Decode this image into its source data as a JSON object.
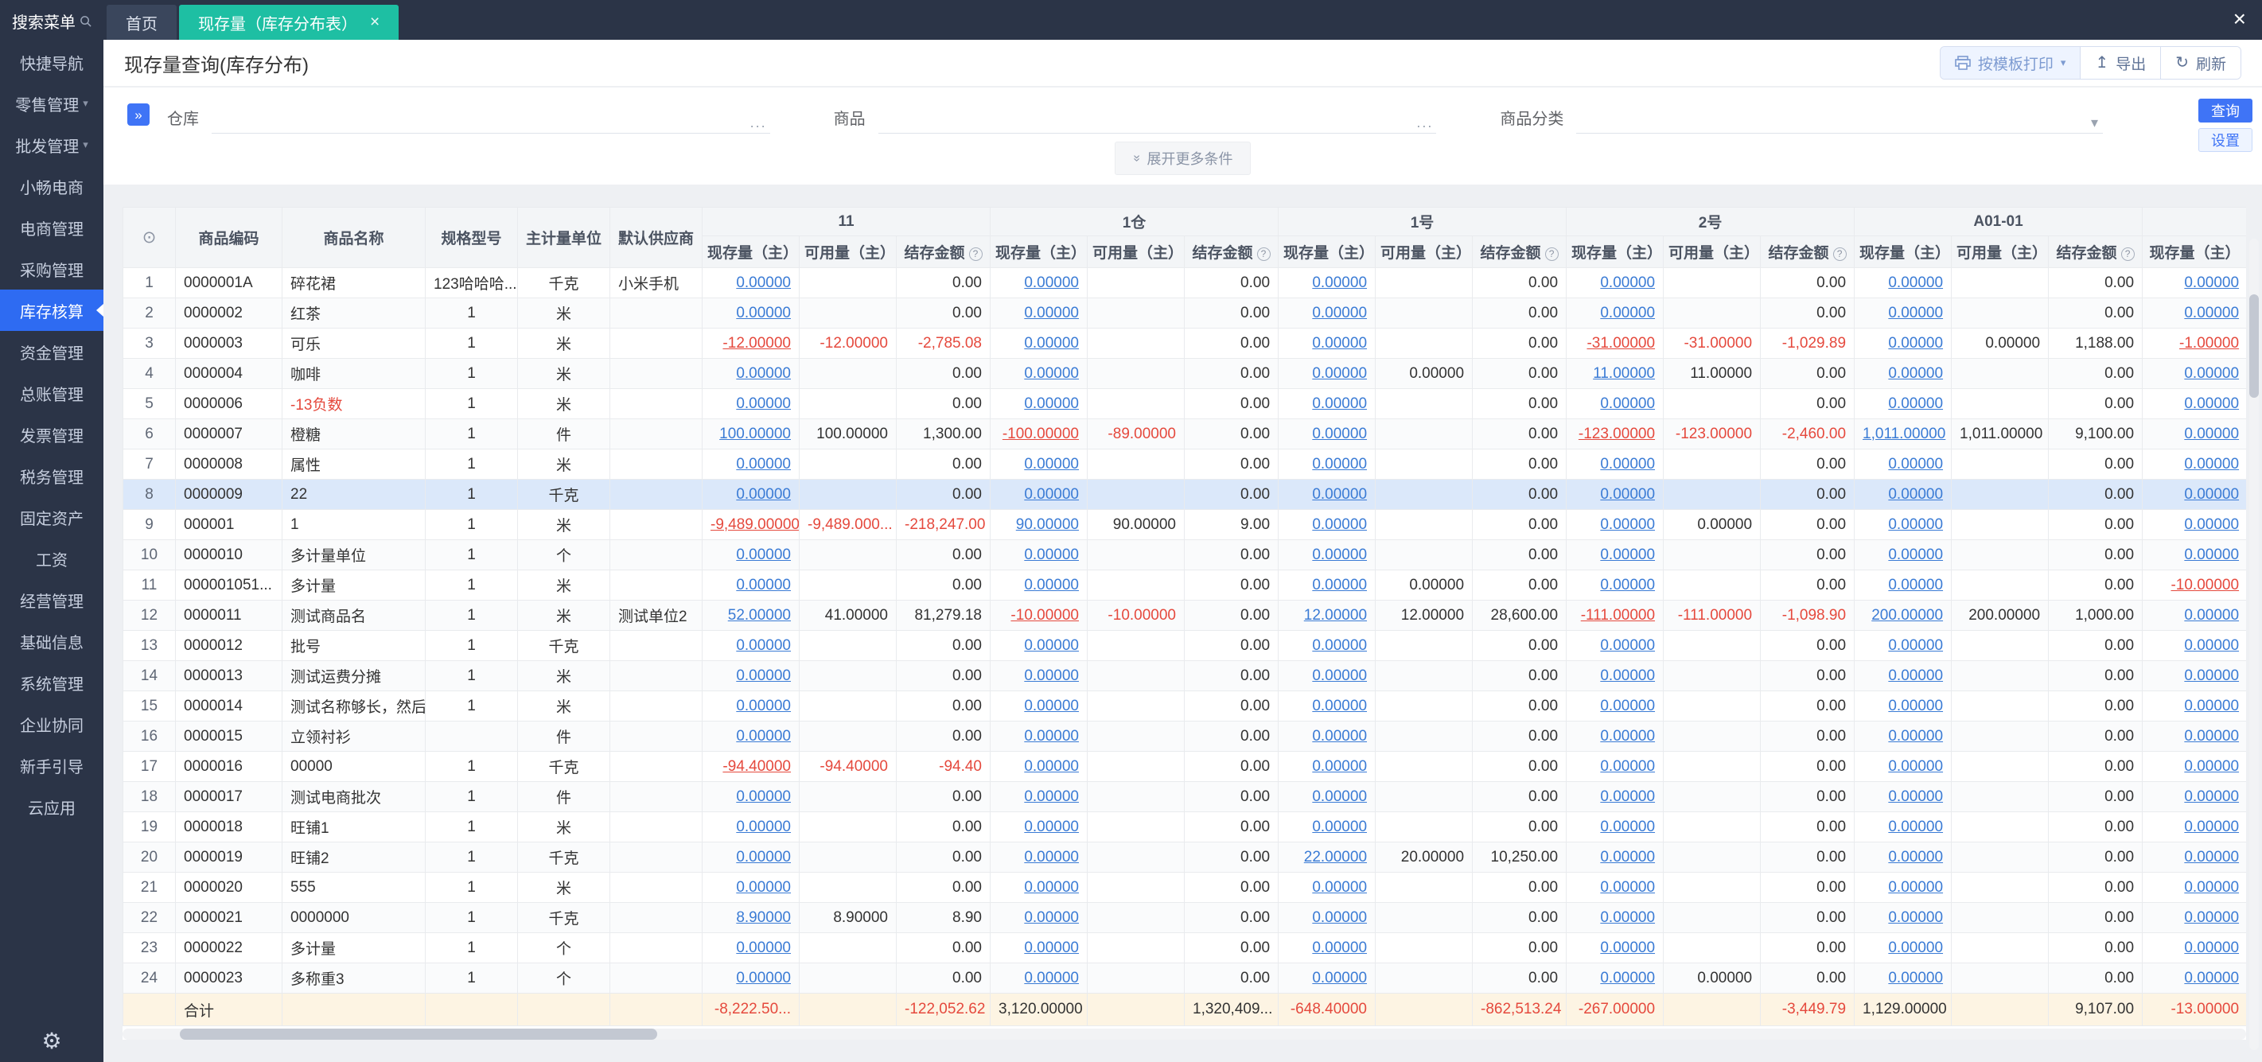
{
  "window": {
    "close_icon": "×"
  },
  "colors": {
    "sidebar_bg": "#2b3447",
    "accent_blue": "#3f74f6",
    "active_tab_teal": "#1ebfa3",
    "link_blue": "#3a7bd5",
    "negative_red": "#e5493d",
    "selected_row_bg": "#dbe8fa",
    "total_row_bg": "#fdf4e3"
  },
  "sidebar": {
    "items": [
      {
        "label": "搜索菜单",
        "icon": "search"
      },
      {
        "label": "快捷导航"
      },
      {
        "label": "零售管理",
        "arrow": true
      },
      {
        "label": "批发管理",
        "arrow": true
      },
      {
        "label": "小畅电商"
      },
      {
        "label": "电商管理"
      },
      {
        "label": "采购管理"
      },
      {
        "label": "库存核算",
        "active": true
      },
      {
        "label": "资金管理"
      },
      {
        "label": "总账管理"
      },
      {
        "label": "发票管理"
      },
      {
        "label": "税务管理"
      },
      {
        "label": "固定资产"
      },
      {
        "label": "工资"
      },
      {
        "label": "经营管理"
      },
      {
        "label": "基础信息"
      },
      {
        "label": "系统管理"
      },
      {
        "label": "企业协同"
      },
      {
        "label": "新手引导"
      },
      {
        "label": "云应用"
      }
    ]
  },
  "tabs": {
    "home": "首页",
    "active": "现存量（库存分布表）"
  },
  "header": {
    "title": "现存量查询(库存分布)",
    "print_button": "按模板打印",
    "export_button": "导出",
    "refresh_button": "刷新"
  },
  "filters": {
    "warehouse_label": "仓库",
    "goods_label": "商品",
    "category_label": "商品分类",
    "picker_ellipsis": "...",
    "query_button": "查询",
    "settings_button": "设置",
    "more_button": "展开更多条件"
  },
  "table": {
    "fixed_columns": [
      "商品编码",
      "商品名称",
      "规格型号",
      "主计量单位",
      "默认供应商"
    ],
    "warehouse_groups": [
      "11",
      "1仓",
      "1号",
      "2号",
      "A01-01"
    ],
    "measure_columns": [
      "现存量（主）",
      "可用量（主）",
      "结存金额"
    ],
    "last_partial_column": "现存量（主）",
    "total_label": "合计",
    "rows": [
      {
        "num": 1,
        "code": "0000001A",
        "name": "碎花裙",
        "spec": "123哈哈哈...",
        "unit": "千克",
        "supplier": "小米手机",
        "cells": [
          "0.00000",
          "",
          "0.00",
          "0.00000",
          "",
          "0.00",
          "0.00000",
          "",
          "0.00",
          "0.00000",
          "",
          "0.00",
          "0.00000",
          "",
          "0.00",
          "0.00000"
        ]
      },
      {
        "num": 2,
        "code": "0000002",
        "name": "红茶",
        "spec": "1",
        "unit": "米",
        "supplier": "",
        "cells": [
          "0.00000",
          "",
          "0.00",
          "0.00000",
          "",
          "0.00",
          "0.00000",
          "",
          "0.00",
          "0.00000",
          "",
          "0.00",
          "0.00000",
          "",
          "0.00",
          "0.00000"
        ]
      },
      {
        "num": 3,
        "code": "0000003",
        "name": "可乐",
        "spec": "1",
        "unit": "米",
        "supplier": "",
        "cells": [
          "-12.00000",
          "-12.00000",
          "-2,785.08",
          "0.00000",
          "",
          "0.00",
          "0.00000",
          "",
          "0.00",
          "-31.00000",
          "-31.00000",
          "-1,029.89",
          "0.00000",
          "0.00000",
          "1,188.00",
          "-1.00000"
        ]
      },
      {
        "num": 4,
        "code": "0000004",
        "name": "咖啡",
        "spec": "1",
        "unit": "米",
        "supplier": "",
        "cells": [
          "0.00000",
          "",
          "0.00",
          "0.00000",
          "",
          "0.00",
          "0.00000",
          "0.00000",
          "0.00",
          "11.00000",
          "11.00000",
          "0.00",
          "0.00000",
          "",
          "0.00",
          "0.00000"
        ]
      },
      {
        "num": 5,
        "code": "0000006",
        "name": "-13负数",
        "nameRed": true,
        "spec": "1",
        "unit": "米",
        "supplier": "",
        "cells": [
          "0.00000",
          "",
          "0.00",
          "0.00000",
          "",
          "0.00",
          "0.00000",
          "",
          "0.00",
          "0.00000",
          "",
          "0.00",
          "0.00000",
          "",
          "0.00",
          "0.00000"
        ]
      },
      {
        "num": 6,
        "code": "0000007",
        "name": "橙糖",
        "spec": "1",
        "unit": "件",
        "supplier": "",
        "cells": [
          "100.00000",
          "100.00000",
          "1,300.00",
          "-100.00000",
          "-89.00000",
          "0.00",
          "0.00000",
          "",
          "0.00",
          "-123.00000",
          "-123.00000",
          "-2,460.00",
          "1,011.00000",
          "1,011.00000",
          "9,100.00",
          "0.00000"
        ]
      },
      {
        "num": 7,
        "code": "0000008",
        "name": "属性",
        "spec": "1",
        "unit": "米",
        "supplier": "",
        "cells": [
          "0.00000",
          "",
          "0.00",
          "0.00000",
          "",
          "0.00",
          "0.00000",
          "",
          "0.00",
          "0.00000",
          "",
          "0.00",
          "0.00000",
          "",
          "0.00",
          "0.00000"
        ]
      },
      {
        "num": 8,
        "code": "0000009",
        "name": "22",
        "spec": "1",
        "unit": "千克",
        "supplier": "",
        "selected": true,
        "cells": [
          "0.00000",
          "",
          "0.00",
          "0.00000",
          "",
          "0.00",
          "0.00000",
          "",
          "0.00",
          "0.00000",
          "",
          "0.00",
          "0.00000",
          "",
          "0.00",
          "0.00000"
        ]
      },
      {
        "num": 9,
        "code": "000001",
        "name": "1",
        "spec": "1",
        "unit": "米",
        "supplier": "",
        "cells": [
          "-9,489.00000",
          "-9,489.000...",
          "-218,247.00",
          "90.00000",
          "90.00000",
          "9.00",
          "0.00000",
          "",
          "0.00",
          "0.00000",
          "0.00000",
          "0.00",
          "0.00000",
          "",
          "0.00",
          "0.00000"
        ]
      },
      {
        "num": 10,
        "code": "0000010",
        "name": "多计量单位",
        "spec": "1",
        "unit": "个",
        "supplier": "",
        "cells": [
          "0.00000",
          "",
          "0.00",
          "0.00000",
          "",
          "0.00",
          "0.00000",
          "",
          "0.00",
          "0.00000",
          "",
          "0.00",
          "0.00000",
          "",
          "0.00",
          "0.00000"
        ]
      },
      {
        "num": 11,
        "code": "000001051...",
        "name": "多计量",
        "spec": "1",
        "unit": "米",
        "supplier": "",
        "cells": [
          "0.00000",
          "",
          "0.00",
          "0.00000",
          "",
          "0.00",
          "0.00000",
          "0.00000",
          "0.00",
          "0.00000",
          "",
          "0.00",
          "0.00000",
          "",
          "0.00",
          "-10.00000"
        ]
      },
      {
        "num": 12,
        "code": "0000011",
        "name": "测试商品名",
        "spec": "1",
        "unit": "米",
        "supplier": "测试单位2",
        "cells": [
          "52.00000",
          "41.00000",
          "81,279.18",
          "-10.00000",
          "-10.00000",
          "0.00",
          "12.00000",
          "12.00000",
          "28,600.00",
          "-111.00000",
          "-111.00000",
          "-1,098.90",
          "200.00000",
          "200.00000",
          "1,000.00",
          "0.00000"
        ]
      },
      {
        "num": 13,
        "code": "0000012",
        "name": "批号",
        "spec": "1",
        "unit": "千克",
        "supplier": "",
        "cells": [
          "0.00000",
          "",
          "0.00",
          "0.00000",
          "",
          "0.00",
          "0.00000",
          "",
          "0.00",
          "0.00000",
          "",
          "0.00",
          "0.00000",
          "",
          "0.00",
          "0.00000"
        ]
      },
      {
        "num": 14,
        "code": "0000013",
        "name": "测试运费分摊",
        "spec": "1",
        "unit": "米",
        "supplier": "",
        "cells": [
          "0.00000",
          "",
          "0.00",
          "0.00000",
          "",
          "0.00",
          "0.00000",
          "",
          "0.00",
          "0.00000",
          "",
          "0.00",
          "0.00000",
          "",
          "0.00",
          "0.00000"
        ]
      },
      {
        "num": 15,
        "code": "0000014",
        "name": "测试名称够长，然后数...",
        "spec": "1",
        "unit": "米",
        "supplier": "",
        "cells": [
          "0.00000",
          "",
          "0.00",
          "0.00000",
          "",
          "0.00",
          "0.00000",
          "",
          "0.00",
          "0.00000",
          "",
          "0.00",
          "0.00000",
          "",
          "0.00",
          "0.00000"
        ]
      },
      {
        "num": 16,
        "code": "0000015",
        "name": "立领衬衫",
        "spec": "",
        "unit": "件",
        "supplier": "",
        "cells": [
          "0.00000",
          "",
          "0.00",
          "0.00000",
          "",
          "0.00",
          "0.00000",
          "",
          "0.00",
          "0.00000",
          "",
          "0.00",
          "0.00000",
          "",
          "0.00",
          "0.00000"
        ]
      },
      {
        "num": 17,
        "code": "0000016",
        "name": "00000",
        "spec": "1",
        "unit": "千克",
        "supplier": "",
        "cells": [
          "-94.40000",
          "-94.40000",
          "-94.40",
          "0.00000",
          "",
          "0.00",
          "0.00000",
          "",
          "0.00",
          "0.00000",
          "",
          "0.00",
          "0.00000",
          "",
          "0.00",
          "0.00000"
        ]
      },
      {
        "num": 18,
        "code": "0000017",
        "name": "测试电商批次",
        "spec": "1",
        "unit": "件",
        "supplier": "",
        "cells": [
          "0.00000",
          "",
          "0.00",
          "0.00000",
          "",
          "0.00",
          "0.00000",
          "",
          "0.00",
          "0.00000",
          "",
          "0.00",
          "0.00000",
          "",
          "0.00",
          "0.00000"
        ]
      },
      {
        "num": 19,
        "code": "0000018",
        "name": "旺铺1",
        "spec": "1",
        "unit": "米",
        "supplier": "",
        "cells": [
          "0.00000",
          "",
          "0.00",
          "0.00000",
          "",
          "0.00",
          "0.00000",
          "",
          "0.00",
          "0.00000",
          "",
          "0.00",
          "0.00000",
          "",
          "0.00",
          "0.00000"
        ]
      },
      {
        "num": 20,
        "code": "0000019",
        "name": "旺铺2",
        "spec": "1",
        "unit": "千克",
        "supplier": "",
        "cells": [
          "0.00000",
          "",
          "0.00",
          "0.00000",
          "",
          "0.00",
          "22.00000",
          "20.00000",
          "10,250.00",
          "0.00000",
          "",
          "0.00",
          "0.00000",
          "",
          "0.00",
          "0.00000"
        ]
      },
      {
        "num": 21,
        "code": "0000020",
        "name": "555",
        "spec": "1",
        "unit": "米",
        "supplier": "",
        "cells": [
          "0.00000",
          "",
          "0.00",
          "0.00000",
          "",
          "0.00",
          "0.00000",
          "",
          "0.00",
          "0.00000",
          "",
          "0.00",
          "0.00000",
          "",
          "0.00",
          "0.00000"
        ]
      },
      {
        "num": 22,
        "code": "0000021",
        "name": "0000000",
        "spec": "1",
        "unit": "千克",
        "supplier": "",
        "cells": [
          "8.90000",
          "8.90000",
          "8.90",
          "0.00000",
          "",
          "0.00",
          "0.00000",
          "",
          "0.00",
          "0.00000",
          "",
          "0.00",
          "0.00000",
          "",
          "0.00",
          "0.00000"
        ]
      },
      {
        "num": 23,
        "code": "0000022",
        "name": "多计量",
        "spec": "1",
        "unit": "个",
        "supplier": "",
        "cells": [
          "0.00000",
          "",
          "0.00",
          "0.00000",
          "",
          "0.00",
          "0.00000",
          "",
          "0.00",
          "0.00000",
          "",
          "0.00",
          "0.00000",
          "",
          "0.00",
          "0.00000"
        ]
      },
      {
        "num": 24,
        "code": "0000023",
        "name": "多称重3",
        "spec": "1",
        "unit": "个",
        "supplier": "",
        "cells": [
          "0.00000",
          "",
          "0.00",
          "0.00000",
          "",
          "0.00",
          "0.00000",
          "",
          "0.00",
          "0.00000",
          "0.00000",
          "0.00",
          "0.00000",
          "",
          "0.00",
          "0.00000"
        ]
      }
    ],
    "total_cells": [
      "-8,222.50...",
      "",
      "-122,052.62",
      "3,120.00000",
      "",
      "1,320,409...",
      "-648.40000",
      "",
      "-862,513.24",
      "-267.00000",
      "",
      "-3,449.79",
      "1,129.00000",
      "",
      "9,107.00",
      "-13.00000"
    ]
  }
}
